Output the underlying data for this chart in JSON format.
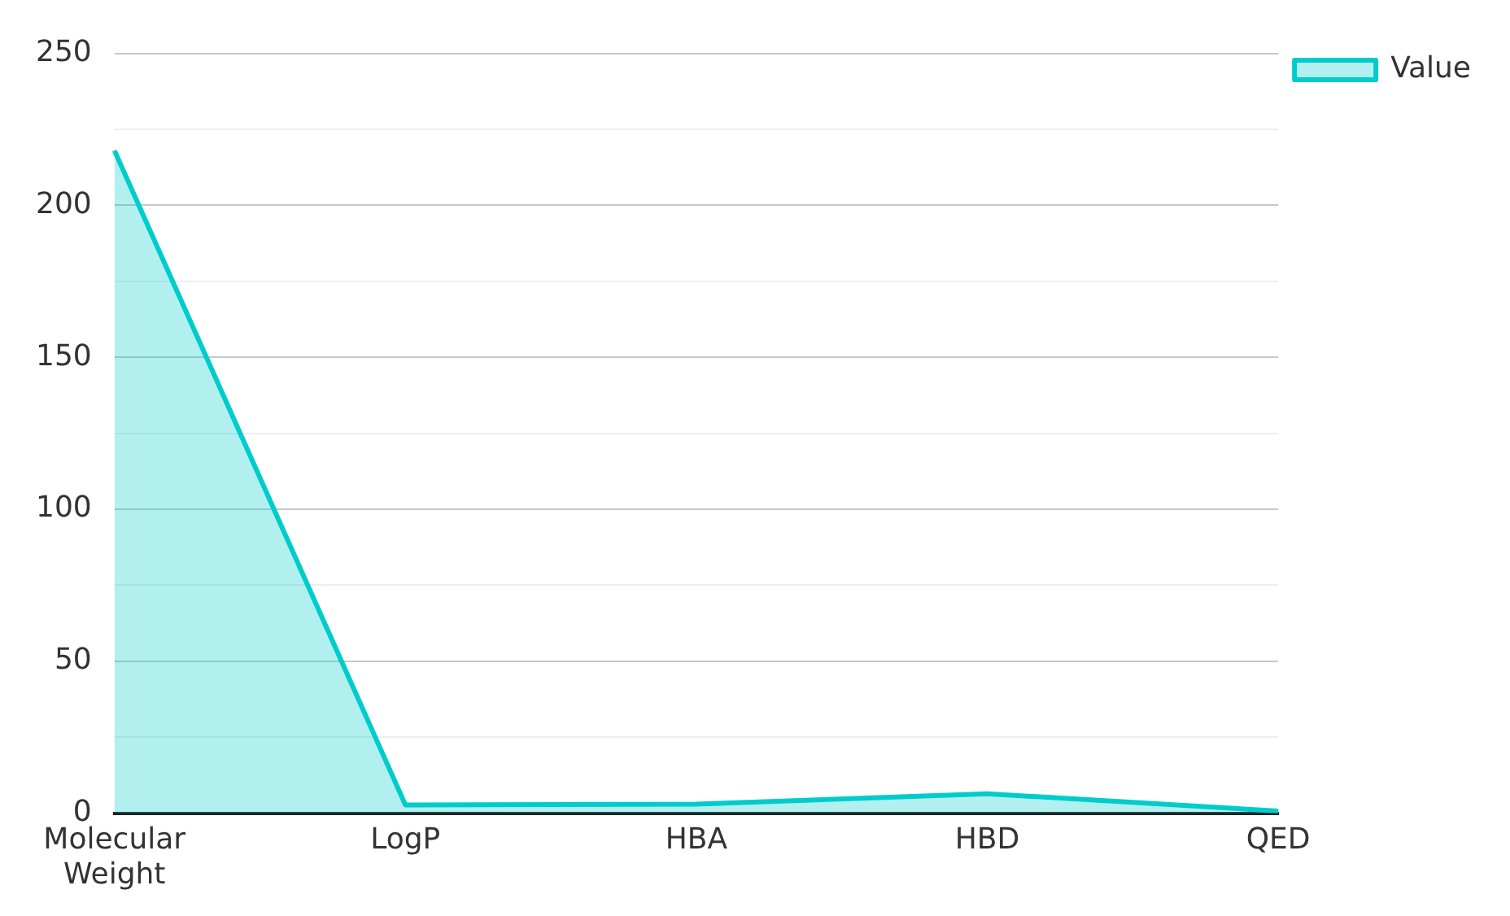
{
  "chart_data": {
    "type": "area",
    "categories": [
      "Molecular Weight",
      "LogP",
      "HBA",
      "HBD",
      "QED"
    ],
    "series": [
      {
        "name": "Value",
        "color": "#00cccc",
        "values": [
          218,
          2.7,
          3,
          6.4,
          0.7
        ]
      }
    ],
    "ylim": [
      0,
      250
    ],
    "yticks": [
      0,
      {
        "value": 25,
        "label": null
      },
      50,
      {
        "value": 75,
        "label": null
      },
      100,
      {
        "value": 125,
        "label": null
      },
      150,
      {
        "value": 175,
        "label": null
      },
      200,
      {
        "value": 225,
        "label": null
      },
      250
    ],
    "grid": "y",
    "legend": "top right",
    "marker": "none",
    "line_style": "solid"
  }
}
